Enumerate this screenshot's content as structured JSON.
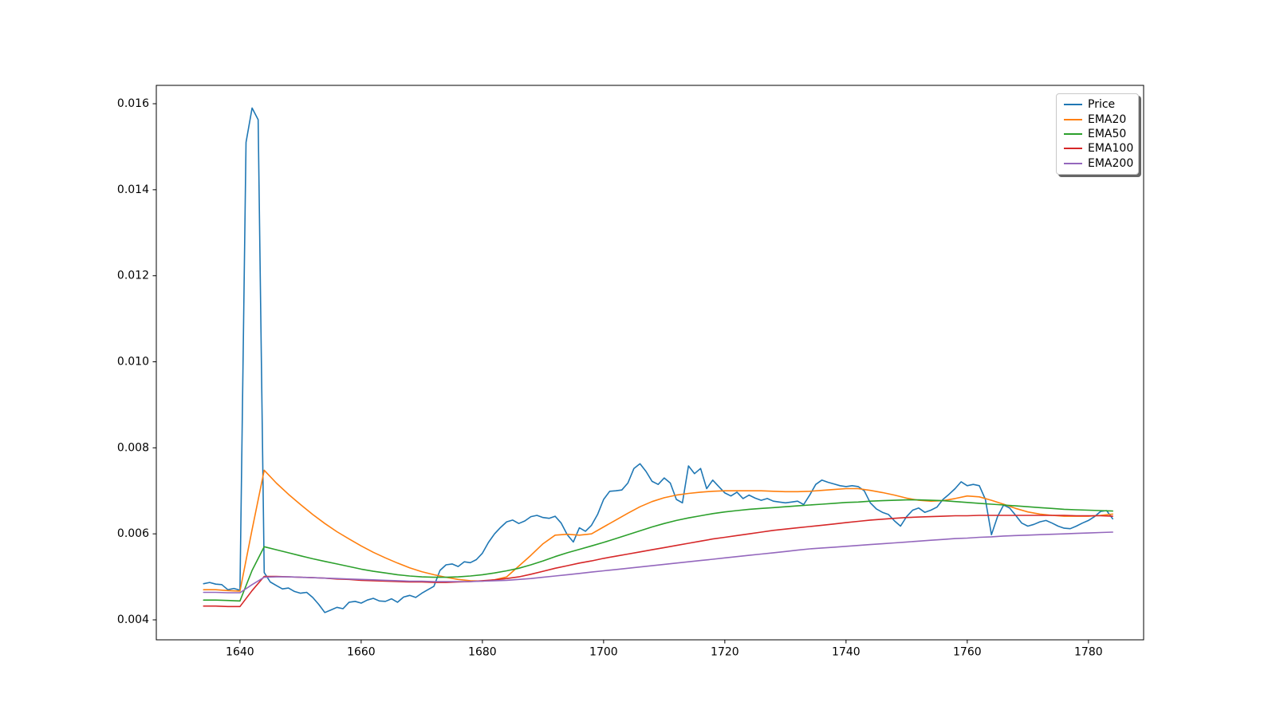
{
  "figure": {
    "background": "#ffffff"
  },
  "chart_data": {
    "type": "line",
    "title": "",
    "xlabel": "",
    "ylabel": "",
    "xlim": [
      1626.2,
      1789.1
    ],
    "ylim": [
      0.003536,
      0.016427
    ],
    "grid": false,
    "x_ticks": [
      1640,
      1660,
      1680,
      1700,
      1720,
      1740,
      1760,
      1780
    ],
    "x_tick_labels": [
      "1640",
      "1660",
      "1680",
      "1700",
      "1720",
      "1740",
      "1760",
      "1780"
    ],
    "y_ticks": [
      0.004,
      0.006,
      0.008,
      0.01,
      0.012,
      0.014,
      0.016
    ],
    "y_tick_labels": [
      "0.004",
      "0.006",
      "0.008",
      "0.010",
      "0.012",
      "0.014",
      "0.016"
    ],
    "legend": {
      "location": "upper right",
      "shadow": true,
      "border_color": "#c8c8c8",
      "background": "#ffffff",
      "entries": [
        "Price",
        "EMA20",
        "EMA50",
        "EMA100",
        "EMA200"
      ]
    },
    "series": [
      {
        "name": "Price",
        "color": "#1f77b4",
        "x_start": 1634,
        "x_step": 1,
        "values": [
          0.00484,
          0.00487,
          0.00483,
          0.00482,
          0.0047,
          0.00473,
          0.00469,
          0.0151,
          0.0159,
          0.01563,
          0.0051,
          0.00488,
          0.0048,
          0.00472,
          0.00474,
          0.00466,
          0.00462,
          0.00464,
          0.00452,
          0.00436,
          0.00417,
          0.00423,
          0.00429,
          0.00426,
          0.00441,
          0.00443,
          0.00439,
          0.00446,
          0.0045,
          0.00444,
          0.00443,
          0.00449,
          0.00441,
          0.00453,
          0.00457,
          0.00452,
          0.00462,
          0.0047,
          0.00478,
          0.00515,
          0.00528,
          0.0053,
          0.00524,
          0.00535,
          0.00533,
          0.0054,
          0.00555,
          0.0058,
          0.006,
          0.00615,
          0.00628,
          0.00632,
          0.00624,
          0.0063,
          0.0064,
          0.00643,
          0.00638,
          0.00636,
          0.00641,
          0.00625,
          0.00598,
          0.00581,
          0.00614,
          0.00606,
          0.0062,
          0.00645,
          0.0068,
          0.00699,
          0.007,
          0.00702,
          0.00718,
          0.00752,
          0.00763,
          0.00745,
          0.00722,
          0.00715,
          0.0073,
          0.00718,
          0.0068,
          0.00672,
          0.00758,
          0.0074,
          0.00752,
          0.00705,
          0.00725,
          0.0071,
          0.00695,
          0.00688,
          0.00697,
          0.00682,
          0.0069,
          0.00683,
          0.00678,
          0.00682,
          0.00676,
          0.00674,
          0.00672,
          0.00674,
          0.00676,
          0.00668,
          0.0069,
          0.00715,
          0.00725,
          0.0072,
          0.00716,
          0.00712,
          0.0071,
          0.00712,
          0.0071,
          0.007,
          0.00672,
          0.00658,
          0.0065,
          0.00645,
          0.0063,
          0.00618,
          0.0064,
          0.00655,
          0.0066,
          0.0065,
          0.00655,
          0.00662,
          0.0068,
          0.00692,
          0.00705,
          0.00721,
          0.00712,
          0.00715,
          0.00712,
          0.0068,
          0.00598,
          0.0064,
          0.00667,
          0.0066,
          0.00643,
          0.00625,
          0.00618,
          0.00622,
          0.00628,
          0.00631,
          0.00625,
          0.00618,
          0.00613,
          0.00612,
          0.00618,
          0.00625,
          0.00631,
          0.0064,
          0.00652,
          0.00654,
          0.00635
        ]
      },
      {
        "name": "EMA20",
        "color": "#ff7f0e",
        "x_start": 1634,
        "x_step": 2,
        "values": [
          0.0047,
          0.0047,
          0.00468,
          0.00467,
          0.0061,
          0.00748,
          0.00718,
          0.00692,
          0.00668,
          0.00645,
          0.00624,
          0.00605,
          0.00588,
          0.00572,
          0.00557,
          0.00544,
          0.00532,
          0.00521,
          0.00512,
          0.00505,
          0.00499,
          0.00494,
          0.00491,
          0.0049,
          0.00493,
          0.005,
          0.00525,
          0.0055,
          0.00577,
          0.00597,
          0.00599,
          0.00597,
          0.006,
          0.00616,
          0.00632,
          0.00648,
          0.00663,
          0.00675,
          0.00684,
          0.0069,
          0.00694,
          0.00697,
          0.00699,
          0.007,
          0.007,
          0.007,
          0.007,
          0.00699,
          0.00698,
          0.00698,
          0.00699,
          0.00701,
          0.00703,
          0.00705,
          0.00705,
          0.00701,
          0.00696,
          0.0069,
          0.00683,
          0.00678,
          0.00676,
          0.00677,
          0.00682,
          0.00688,
          0.00686,
          0.00678,
          0.00669,
          0.00659,
          0.00651,
          0.00646,
          0.00643,
          0.00641,
          0.00641,
          0.00641,
          0.00643,
          0.00646
        ]
      },
      {
        "name": "EMA50",
        "color": "#2ca02c",
        "x_start": 1634,
        "x_step": 2,
        "values": [
          0.00446,
          0.00446,
          0.00445,
          0.00444,
          0.00515,
          0.0057,
          0.00563,
          0.00556,
          0.00549,
          0.00542,
          0.00536,
          0.0053,
          0.00524,
          0.00518,
          0.00513,
          0.00509,
          0.00505,
          0.00502,
          0.005,
          0.00499,
          0.00499,
          0.005,
          0.00502,
          0.00505,
          0.00509,
          0.00514,
          0.0052,
          0.00528,
          0.00537,
          0.00547,
          0.00556,
          0.00564,
          0.00572,
          0.0058,
          0.00589,
          0.00598,
          0.00607,
          0.00616,
          0.00624,
          0.00631,
          0.00637,
          0.00642,
          0.00647,
          0.00651,
          0.00654,
          0.00657,
          0.00659,
          0.00661,
          0.00663,
          0.00665,
          0.00667,
          0.00669,
          0.00671,
          0.00673,
          0.00674,
          0.00676,
          0.00677,
          0.00678,
          0.00679,
          0.00679,
          0.00678,
          0.00677,
          0.00675,
          0.00673,
          0.00671,
          0.00669,
          0.00667,
          0.00665,
          0.00663,
          0.00661,
          0.00659,
          0.00657,
          0.00656,
          0.00655,
          0.00654,
          0.00653
        ]
      },
      {
        "name": "EMA100",
        "color": "#d62728",
        "x_start": 1634,
        "x_step": 2,
        "values": [
          0.00432,
          0.00432,
          0.00431,
          0.00431,
          0.00468,
          0.00501,
          0.00501,
          0.005,
          0.00499,
          0.00498,
          0.00497,
          0.00495,
          0.00494,
          0.00492,
          0.00491,
          0.0049,
          0.00489,
          0.00488,
          0.00488,
          0.00487,
          0.00487,
          0.00488,
          0.00489,
          0.00491,
          0.00493,
          0.00496,
          0.005,
          0.00506,
          0.00513,
          0.0052,
          0.00526,
          0.00532,
          0.00537,
          0.00543,
          0.00548,
          0.00553,
          0.00558,
          0.00563,
          0.00568,
          0.00573,
          0.00578,
          0.00583,
          0.00588,
          0.00592,
          0.00596,
          0.006,
          0.00604,
          0.00608,
          0.00611,
          0.00614,
          0.00617,
          0.0062,
          0.00623,
          0.00626,
          0.00629,
          0.00632,
          0.00634,
          0.00636,
          0.00638,
          0.00639,
          0.0064,
          0.00641,
          0.00642,
          0.00642,
          0.00643,
          0.00643,
          0.00643,
          0.00643,
          0.00643,
          0.00643,
          0.00643,
          0.00643,
          0.00642,
          0.00642,
          0.00642,
          0.00641
        ]
      },
      {
        "name": "EMA200",
        "color": "#9467bd",
        "x_start": 1634,
        "x_step": 2,
        "values": [
          0.00464,
          0.00464,
          0.00463,
          0.00463,
          0.00482,
          0.00499,
          0.005,
          0.005,
          0.00499,
          0.00498,
          0.00497,
          0.00496,
          0.00495,
          0.00494,
          0.00493,
          0.00492,
          0.00491,
          0.0049,
          0.0049,
          0.00489,
          0.00489,
          0.00489,
          0.00489,
          0.0049,
          0.00491,
          0.00492,
          0.00494,
          0.00496,
          0.00499,
          0.00502,
          0.00505,
          0.00508,
          0.00511,
          0.00514,
          0.00517,
          0.0052,
          0.00523,
          0.00526,
          0.00529,
          0.00532,
          0.00535,
          0.00538,
          0.00541,
          0.00544,
          0.00547,
          0.0055,
          0.00553,
          0.00556,
          0.00559,
          0.00562,
          0.00565,
          0.00567,
          0.00569,
          0.00571,
          0.00573,
          0.00575,
          0.00577,
          0.00579,
          0.00581,
          0.00583,
          0.00585,
          0.00587,
          0.00589,
          0.0059,
          0.00592,
          0.00593,
          0.00595,
          0.00596,
          0.00597,
          0.00598,
          0.00599,
          0.006,
          0.00601,
          0.00602,
          0.00603,
          0.00604
        ]
      }
    ]
  }
}
